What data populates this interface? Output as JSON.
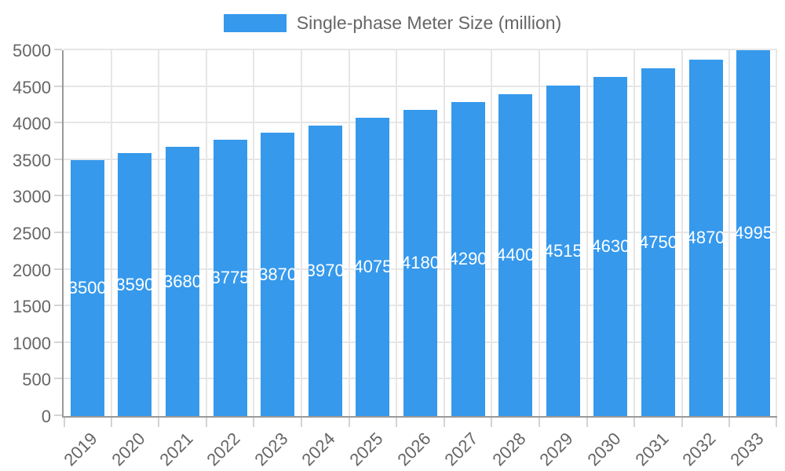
{
  "legend": {
    "label": "Single-phase Meter Size (million)"
  },
  "colors": {
    "bar": "#3699EC",
    "grid": "#E6E6E6",
    "axis": "#999999",
    "tick": "#D4D4D4",
    "axis_label": "#666666",
    "legend_text": "#666666",
    "bar_label": "#FFFFFF",
    "background": "#FFFFFF"
  },
  "chart_data": {
    "type": "bar",
    "title": "",
    "xlabel": "",
    "ylabel": "",
    "categories": [
      "2019",
      "2020",
      "2021",
      "2022",
      "2023",
      "2024",
      "2025",
      "2026",
      "2027",
      "2028",
      "2029",
      "2030",
      "2031",
      "2032",
      "2033"
    ],
    "series": [
      {
        "name": "Single-phase Meter Size (million)",
        "values": [
          3500,
          3590,
          3680,
          3775,
          3870,
          3970,
          4075,
          4180,
          4290,
          4400,
          4515,
          4630,
          4750,
          4870,
          4995
        ]
      }
    ],
    "ylim": [
      0,
      5000
    ],
    "ytick_step": 500,
    "yticks": [
      0,
      500,
      1000,
      1500,
      2000,
      2500,
      3000,
      3500,
      4000,
      4500,
      5000
    ],
    "grid": true,
    "legend_position": "top-center",
    "bar_value_labels": "white, centered vertically inside bars",
    "x_tick_label_rotation_deg": -45
  }
}
